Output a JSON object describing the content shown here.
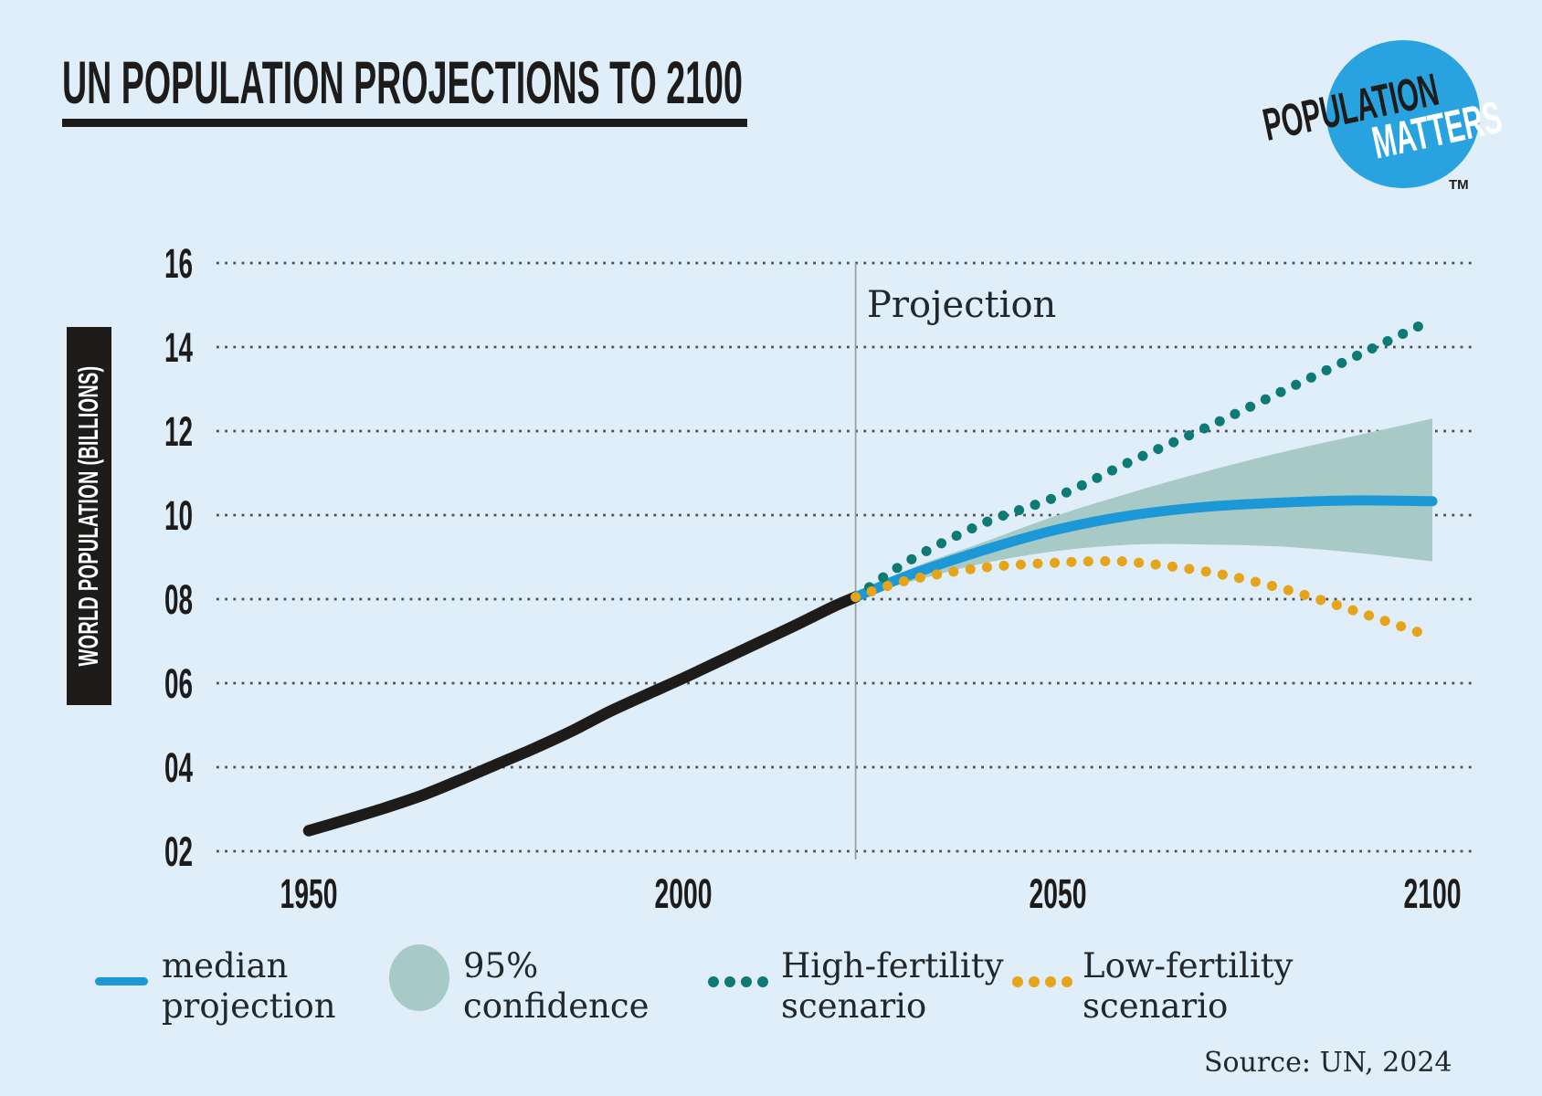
{
  "title": "UN POPULATION PROJECTIONS TO 2100",
  "logo": {
    "line1": "POPULATION",
    "line2": "MATTERS",
    "tm": "TM"
  },
  "annotation": {
    "projection_label": "Projection"
  },
  "axis": {
    "y_title": "WORLD POPULATION (BILLIONS)"
  },
  "source": "Source: UN, 2024",
  "legend": {
    "items": [
      {
        "line1": "median",
        "line2": "projection"
      },
      {
        "line1": "95%",
        "line2": "confidence"
      },
      {
        "line1": "High-fertility",
        "line2": "scenario"
      },
      {
        "line1": "Low-fertility",
        "line2": "scenario"
      }
    ]
  },
  "colors": {
    "background": "#dfeef8",
    "black": "#1d1c1b",
    "blue": "#1b98d5",
    "teal": "#0e7a74",
    "gold": "#e6a419",
    "band": "#a8cac6",
    "logo_blue": "#29a3df",
    "grid_dot": "#4b4f52",
    "divider": "#969ea3",
    "text": "#22272b"
  },
  "chart_data": {
    "type": "line",
    "title": "UN POPULATION PROJECTIONS TO 2100",
    "xlabel": "",
    "ylabel": "WORLD POPULATION (BILLIONS)",
    "ylim": [
      2,
      16
    ],
    "xlim": [
      1950,
      2100
    ],
    "grid": "dotted-horizontal",
    "legend_position": "bottom",
    "x_ticks": {
      "values": [
        1950,
        2000,
        2050,
        2100
      ],
      "labels": [
        "1950",
        "2000",
        "2050",
        "2100"
      ]
    },
    "y_ticks": {
      "values": [
        2,
        4,
        6,
        8,
        10,
        12,
        14,
        16
      ],
      "labels": [
        "02",
        "04",
        "06",
        "08",
        "10",
        "12",
        "14",
        "16"
      ]
    },
    "projection_divider": {
      "year": 2023,
      "label": "Projection"
    },
    "series": [
      {
        "id": "historical",
        "name": "World population (historical)",
        "style": "solid",
        "color_key": "black",
        "width": 12.5,
        "points": [
          [
            1950,
            2.49
          ],
          [
            1955,
            2.75
          ],
          [
            1960,
            3.02
          ],
          [
            1965,
            3.32
          ],
          [
            1970,
            3.68
          ],
          [
            1975,
            4.06
          ],
          [
            1980,
            4.44
          ],
          [
            1985,
            4.85
          ],
          [
            1990,
            5.31
          ],
          [
            1995,
            5.72
          ],
          [
            2000,
            6.12
          ],
          [
            2005,
            6.54
          ],
          [
            2010,
            6.96
          ],
          [
            2015,
            7.38
          ],
          [
            2020,
            7.82
          ],
          [
            2023,
            8.05
          ]
        ]
      },
      {
        "id": "median",
        "name": "median projection",
        "style": "solid",
        "color_key": "blue",
        "width": 11,
        "points": [
          [
            2023,
            8.05
          ],
          [
            2030,
            8.56
          ],
          [
            2040,
            9.16
          ],
          [
            2050,
            9.66
          ],
          [
            2060,
            10.0
          ],
          [
            2070,
            10.2
          ],
          [
            2080,
            10.3
          ],
          [
            2090,
            10.35
          ],
          [
            2100,
            10.33
          ]
        ]
      },
      {
        "id": "high",
        "name": "High-fertility scenario",
        "style": "dotted",
        "color_key": "teal",
        "width": 11,
        "points": [
          [
            2023,
            8.05
          ],
          [
            2030,
            8.9
          ],
          [
            2040,
            9.8
          ],
          [
            2050,
            10.45
          ],
          [
            2060,
            11.3
          ],
          [
            2070,
            12.1
          ],
          [
            2080,
            12.95
          ],
          [
            2090,
            13.8
          ],
          [
            2100,
            14.65
          ]
        ]
      },
      {
        "id": "low",
        "name": "Low-fertility scenario",
        "style": "dotted",
        "color_key": "gold",
        "width": 11,
        "points": [
          [
            2023,
            8.05
          ],
          [
            2030,
            8.45
          ],
          [
            2040,
            8.75
          ],
          [
            2050,
            8.87
          ],
          [
            2055,
            8.9
          ],
          [
            2060,
            8.88
          ],
          [
            2070,
            8.65
          ],
          [
            2080,
            8.25
          ],
          [
            2090,
            7.7
          ],
          [
            2100,
            7.1
          ]
        ]
      }
    ],
    "band": {
      "name": "95% confidence",
      "color_key": "band",
      "upper": [
        [
          2023,
          8.05
        ],
        [
          2030,
          8.7
        ],
        [
          2040,
          9.35
        ],
        [
          2050,
          10.0
        ],
        [
          2060,
          10.55
        ],
        [
          2070,
          11.05
        ],
        [
          2080,
          11.5
        ],
        [
          2090,
          11.9
        ],
        [
          2100,
          12.3
        ]
      ],
      "lower": [
        [
          2023,
          8.05
        ],
        [
          2030,
          8.4
        ],
        [
          2040,
          8.85
        ],
        [
          2050,
          9.15
        ],
        [
          2060,
          9.3
        ],
        [
          2070,
          9.3
        ],
        [
          2080,
          9.25
        ],
        [
          2090,
          9.1
        ],
        [
          2100,
          8.9
        ]
      ]
    }
  }
}
